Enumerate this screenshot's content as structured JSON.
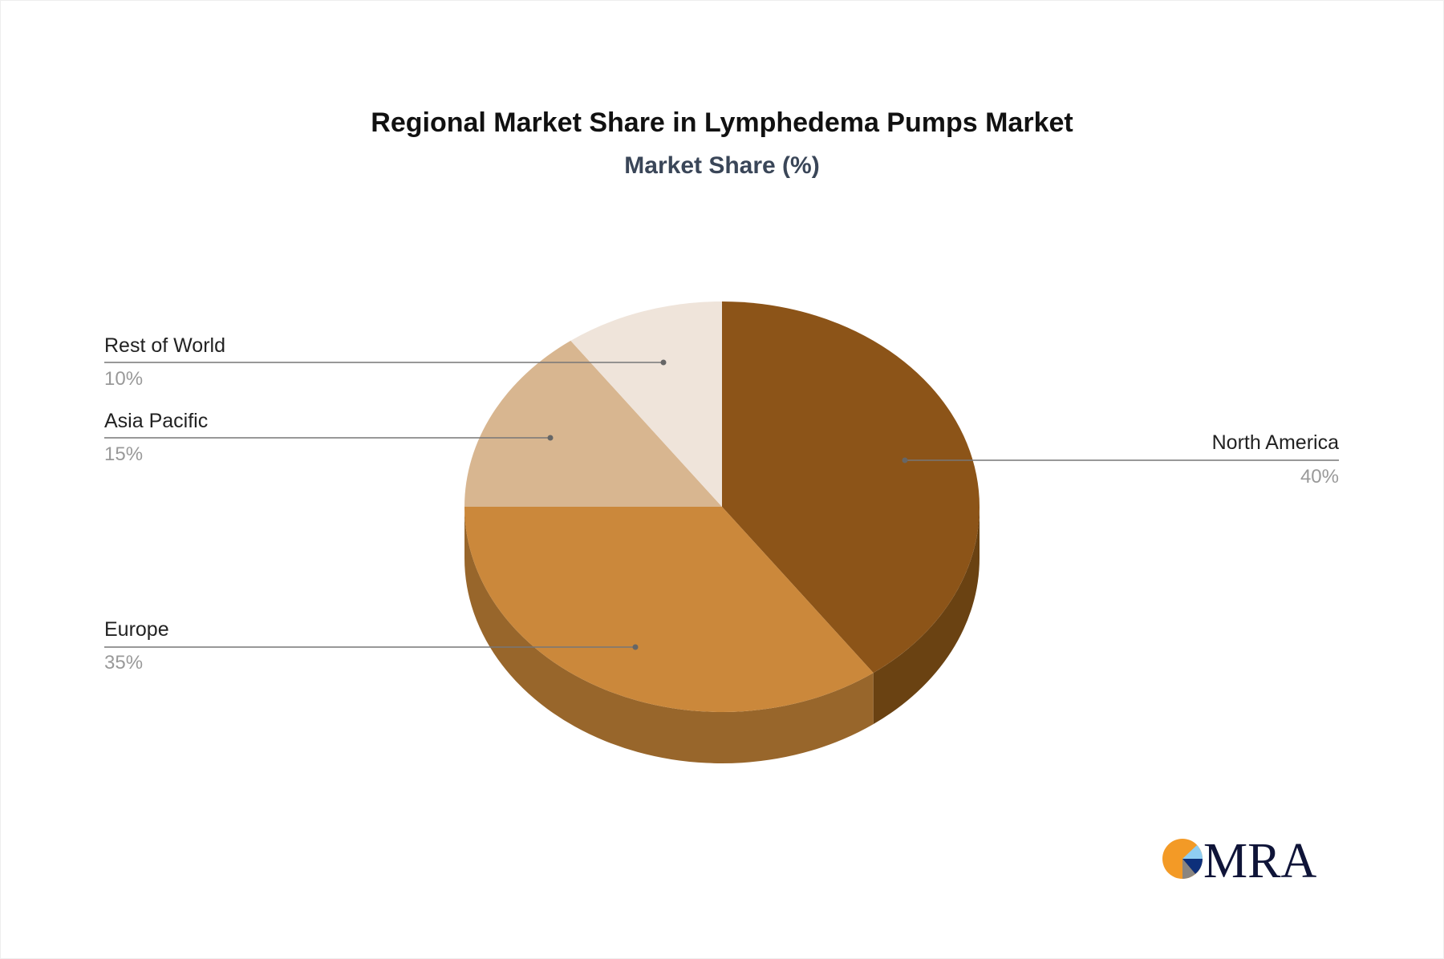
{
  "chart_data": {
    "type": "pie",
    "title": "Regional Market Share in Lymphedema Pumps Market",
    "subtitle": "Market Share (%)",
    "style": "3d",
    "slices": [
      {
        "label": "North America",
        "value": 40,
        "display": "40%",
        "color": "#8c5418",
        "side_color": "#6a4212"
      },
      {
        "label": "Europe",
        "value": 35,
        "display": "35%",
        "color": "#cb883b",
        "side_color": "#98662b"
      },
      {
        "label": "Asia Pacific",
        "value": 15,
        "display": "15%",
        "color": "#d8b690",
        "side_color": "#a88a66"
      },
      {
        "label": "Rest of World",
        "value": 10,
        "display": "10%",
        "color": "#efe4da",
        "side_color": "#bfb4aa"
      }
    ]
  },
  "logo": {
    "text": "MRA",
    "colors": [
      "#f39a26",
      "#8fcdf2",
      "#0d2f7a",
      "#8a8580",
      "#0f1438"
    ]
  }
}
